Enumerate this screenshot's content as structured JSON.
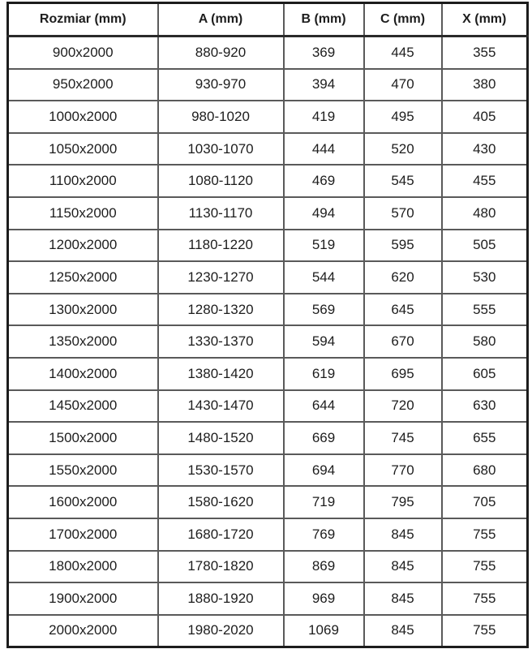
{
  "chart_data": {
    "type": "table",
    "title": "",
    "columns": [
      "Rozmiar (mm)",
      "A (mm)",
      "B (mm)",
      "C (mm)",
      "X (mm)"
    ],
    "rows": [
      [
        "900x2000",
        "880-920",
        "369",
        "445",
        "355"
      ],
      [
        "950x2000",
        "930-970",
        "394",
        "470",
        "380"
      ],
      [
        "1000x2000",
        "980-1020",
        "419",
        "495",
        "405"
      ],
      [
        "1050x2000",
        "1030-1070",
        "444",
        "520",
        "430"
      ],
      [
        "1100x2000",
        "1080-1120",
        "469",
        "545",
        "455"
      ],
      [
        "1150x2000",
        "1130-1170",
        "494",
        "570",
        "480"
      ],
      [
        "1200x2000",
        "1180-1220",
        "519",
        "595",
        "505"
      ],
      [
        "1250x2000",
        "1230-1270",
        "544",
        "620",
        "530"
      ],
      [
        "1300x2000",
        "1280-1320",
        "569",
        "645",
        "555"
      ],
      [
        "1350x2000",
        "1330-1370",
        "594",
        "670",
        "580"
      ],
      [
        "1400x2000",
        "1380-1420",
        "619",
        "695",
        "605"
      ],
      [
        "1450x2000",
        "1430-1470",
        "644",
        "720",
        "630"
      ],
      [
        "1500x2000",
        "1480-1520",
        "669",
        "745",
        "655"
      ],
      [
        "1550x2000",
        "1530-1570",
        "694",
        "770",
        "680"
      ],
      [
        "1600x2000",
        "1580-1620",
        "719",
        "795",
        "705"
      ],
      [
        "1700x2000",
        "1680-1720",
        "769",
        "845",
        "755"
      ],
      [
        "1800x2000",
        "1780-1820",
        "869",
        "845",
        "755"
      ],
      [
        "1900x2000",
        "1880-1920",
        "969",
        "845",
        "755"
      ],
      [
        "2000x2000",
        "1980-2020",
        "1069",
        "845",
        "755"
      ]
    ]
  },
  "colors": {
    "text": "#1d1d1d",
    "grid_line": "#5a5a5a",
    "outer_border": "#1c1c1c",
    "background": "#ffffff"
  }
}
